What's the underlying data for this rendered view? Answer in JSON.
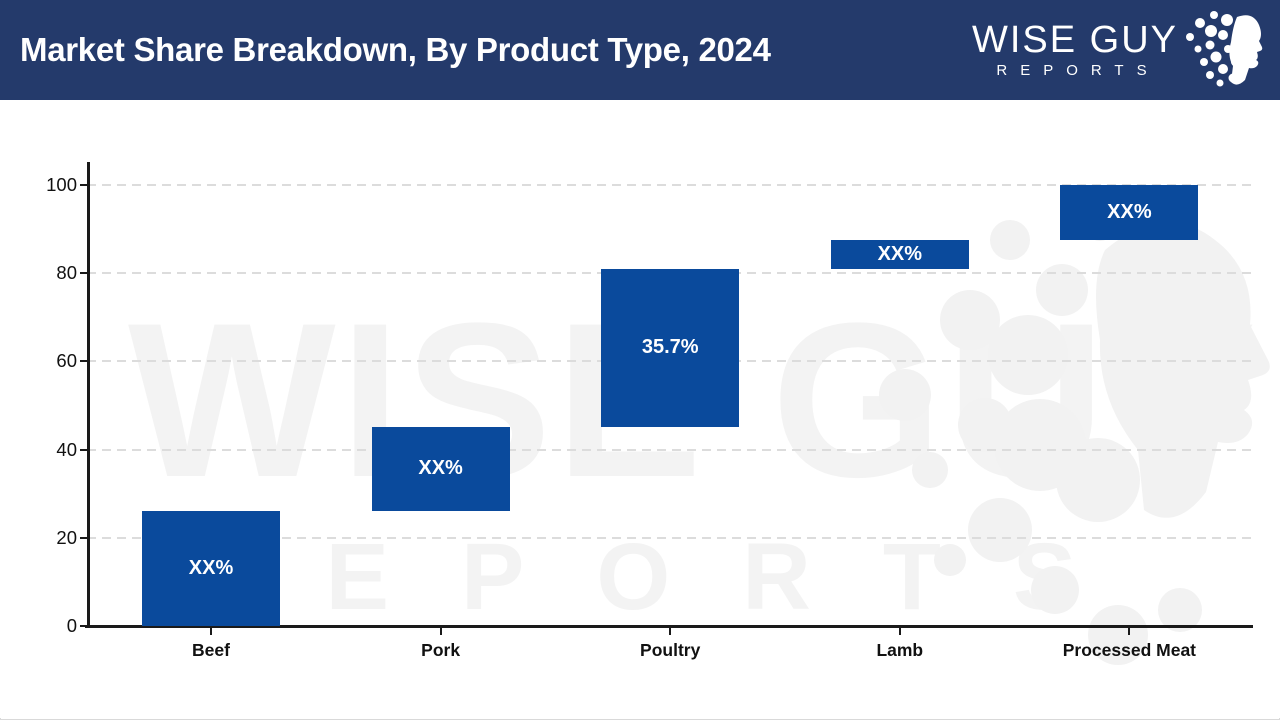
{
  "header": {
    "title": "Market Share Breakdown, By Product Type, 2024",
    "background_color": "#243A6B",
    "logo": {
      "primary": "WISE GUY",
      "secondary": "REPORTS"
    }
  },
  "watermark": {
    "line1": "WISE GUY",
    "line2": "REPORTS"
  },
  "chart_data": {
    "type": "bar",
    "subtype": "waterfall",
    "title": "Market Share Breakdown, By Product Type, 2024",
    "categories": [
      "Beef",
      "Pork",
      "Poultry",
      "Lamb",
      "Processed Meat"
    ],
    "segments": [
      {
        "category": "Beef",
        "start": 0,
        "end": 26,
        "label": "XX%"
      },
      {
        "category": "Pork",
        "start": 26,
        "end": 45.2,
        "label": "XX%"
      },
      {
        "category": "Poultry",
        "start": 45.2,
        "end": 80.9,
        "label": "35.7%"
      },
      {
        "category": "Lamb",
        "start": 80.9,
        "end": 87.5,
        "label": "XX%"
      },
      {
        "category": "Processed Meat",
        "start": 87.5,
        "end": 100,
        "label": "XX%"
      }
    ],
    "y_ticks": [
      0,
      20,
      40,
      60,
      80,
      100
    ],
    "ylim": [
      0,
      100
    ],
    "xlabel": "",
    "ylabel": "",
    "grid": "dashed-horizontal",
    "legend": "none",
    "bar_color": "#0A4A9C",
    "bar_label_color": "#ffffff",
    "axis_color": "#1a1a1a",
    "gridline_color": "#dcdcdc"
  }
}
